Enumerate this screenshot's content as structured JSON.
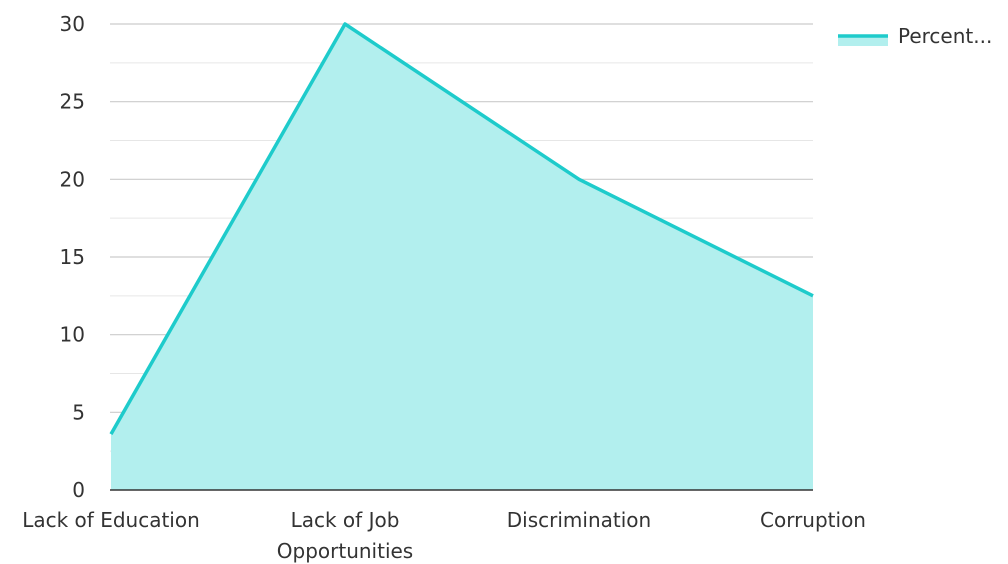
{
  "chart_data": {
    "type": "area",
    "categories": [
      [
        "Lack of Education"
      ],
      [
        "Lack of Job",
        "Opportunities"
      ],
      [
        "Discrimination"
      ],
      [
        "Corruption"
      ]
    ],
    "series": [
      {
        "name": "Percent...",
        "values": [
          3.6,
          30,
          20,
          12.5
        ]
      }
    ],
    "ylim": [
      0,
      30
    ],
    "yticks": [
      0,
      5,
      10,
      15,
      20,
      25,
      30
    ],
    "grid": true,
    "legend": "top-right",
    "colors": {
      "line": "#1ecbcb",
      "fill": "#b2efee",
      "grid": "#cccccc",
      "axis": "#333333"
    }
  }
}
